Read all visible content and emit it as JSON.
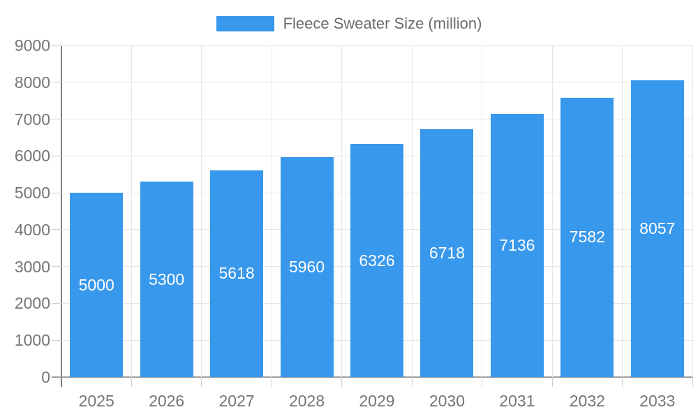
{
  "chart_data": {
    "type": "bar",
    "title": "Fleece Sweater Size (million)",
    "categories": [
      "2025",
      "2026",
      "2027",
      "2028",
      "2029",
      "2030",
      "2031",
      "2032",
      "2033"
    ],
    "values": [
      5000,
      5300,
      5618,
      5960,
      6326,
      6718,
      7136,
      7582,
      8057
    ],
    "bar_labels": [
      "5000",
      "5300",
      "5618",
      "5960",
      "6326",
      "6718",
      "7136",
      "7582",
      "8057"
    ],
    "xlabel": "",
    "ylabel": "",
    "ylim": [
      0,
      9000
    ],
    "yticks": [
      0,
      1000,
      2000,
      3000,
      4000,
      5000,
      6000,
      7000,
      8000,
      9000
    ],
    "grid": true,
    "legend_position": "top-center",
    "value_labels": "inside-bar-centered",
    "colors": {
      "bar": "#3898ec",
      "axis_text": "#757575",
      "legend_text": "#6b6b6b",
      "gridline": "#e6e6e6",
      "baseline": "#9e9e9e",
      "axis_line": "#7d7d7d",
      "value_label": "#ffffff",
      "background": "#ffffff"
    }
  }
}
